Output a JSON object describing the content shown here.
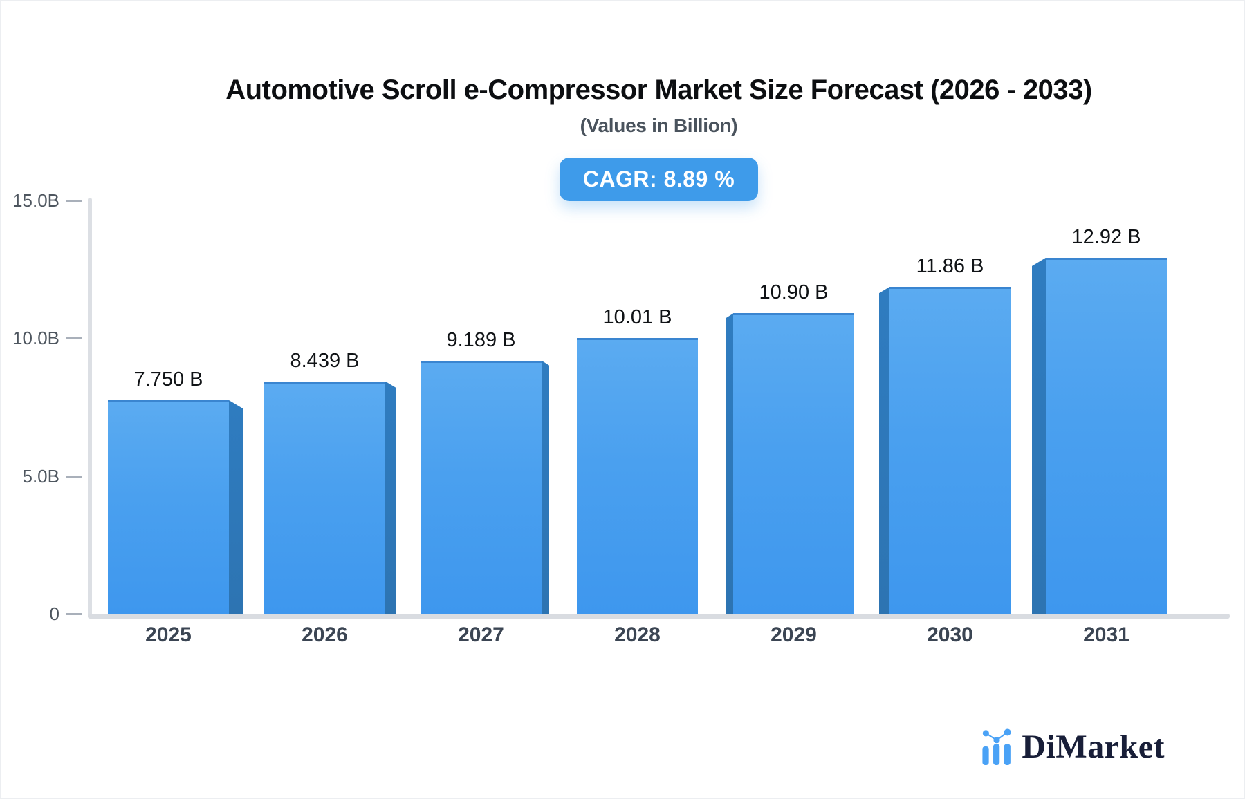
{
  "header": {
    "title": "Automotive Scroll e-Compressor Market Size Forecast (2026 - 2033)",
    "subtitle": "(Values in Billion)",
    "cagr_badge": "CAGR: 8.89 %"
  },
  "chart_data": {
    "type": "bar",
    "title": "Automotive Scroll e-Compressor Market Size Forecast (2026 - 2033)",
    "subtitle": "(Values in Billion)",
    "categories": [
      "2025",
      "2026",
      "2027",
      "2028",
      "2029",
      "2030",
      "2031"
    ],
    "values": [
      7.75,
      8.439,
      9.189,
      10.01,
      10.9,
      11.86,
      12.92
    ],
    "bar_labels": [
      "7.750 B",
      "8.439 B",
      "9.189 B",
      "10.01 B",
      "10.90 B",
      "11.86 B",
      "12.92 B"
    ],
    "unit": "Billion",
    "y_ticks": [
      {
        "value": 15,
        "label": "15.0B"
      },
      {
        "value": 10,
        "label": "10.0B"
      },
      {
        "value": 5,
        "label": "5.0B"
      },
      {
        "value": 0,
        "label": "0"
      }
    ],
    "ylim": [
      0,
      15
    ],
    "grid": false,
    "legend": false,
    "style_3d": true,
    "colors": {
      "bar_top": "#5babf1",
      "bar_bottom": "#3e97ee",
      "bar_edge": "#3a85d0",
      "bar_side": "#2d76b6",
      "axis": "#d9dce1",
      "tick": "#a9b0ba",
      "tick_text": "#4e565f",
      "value_text": "#101316",
      "category_text": "#3b4553"
    }
  },
  "badge_color": "#3e9bea",
  "branding": {
    "logo_text": "DiMarket",
    "logo_icon": "mini-bar-chart-sparkline-icon",
    "logo_accent": "#4aa2f6",
    "logo_text_color": "#181e38"
  }
}
